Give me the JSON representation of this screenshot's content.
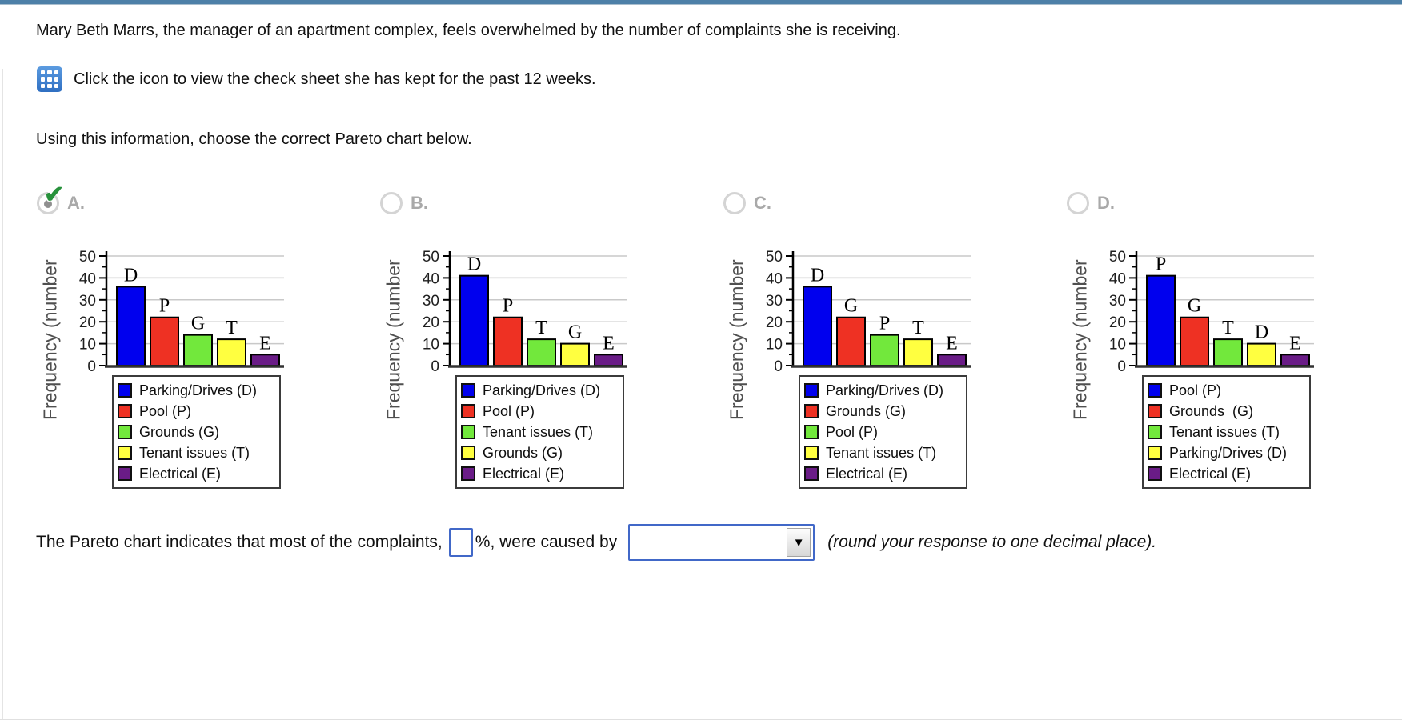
{
  "page": {
    "accent_color": "#4d80a8",
    "answer_border_color": "#4168c8",
    "correct_check_color": "#27913b"
  },
  "intro": {
    "line1": "Mary Beth Marrs, the manager of an apartment complex, feels overwhelmed by the number of complaints she is receiving.",
    "line2": "Click the icon to view the check sheet she has kept for the past 12 weeks.",
    "line3": "Using this information, choose the correct Pareto chart below."
  },
  "icons": {
    "check_sheet_icon": "table-grid-icon",
    "dropdown_arrow": "▼"
  },
  "options": [
    {
      "label": "A.",
      "selected": true
    },
    {
      "label": "B.",
      "selected": false
    },
    {
      "label": "C.",
      "selected": false
    },
    {
      "label": "D.",
      "selected": false
    }
  ],
  "chart_data": [
    {
      "type": "bar",
      "option": "A",
      "title": "",
      "ylabel": "Frequency (number",
      "xlabel": "",
      "ylim": [
        0,
        50
      ],
      "yticks": [
        0,
        10,
        20,
        30,
        40,
        50
      ],
      "grid": true,
      "categories": [
        "D",
        "P",
        "G",
        "T",
        "E"
      ],
      "values": [
        36,
        22,
        14,
        12,
        5
      ],
      "bar_colors": [
        "#0000ee",
        "#ee3123",
        "#72e83c",
        "#ffff40",
        "#6a1c87"
      ],
      "legend": [
        {
          "color": "#0000ee",
          "text": "Parking/Drives (D)"
        },
        {
          "color": "#ee3123",
          "text": "Pool (P)"
        },
        {
          "color": "#72e83c",
          "text": "Grounds (G)"
        },
        {
          "color": "#ffff40",
          "text": "Tenant issues (T)"
        },
        {
          "color": "#6a1c87",
          "text": "Electrical (E)"
        }
      ]
    },
    {
      "type": "bar",
      "option": "B",
      "title": "",
      "ylabel": "Frequency (number",
      "xlabel": "",
      "ylim": [
        0,
        50
      ],
      "yticks": [
        0,
        10,
        20,
        30,
        40,
        50
      ],
      "grid": true,
      "categories": [
        "D",
        "P",
        "T",
        "G",
        "E"
      ],
      "values": [
        41,
        22,
        12,
        10,
        5
      ],
      "bar_colors": [
        "#0000ee",
        "#ee3123",
        "#72e83c",
        "#ffff40",
        "#6a1c87"
      ],
      "legend": [
        {
          "color": "#0000ee",
          "text": "Parking/Drives (D)"
        },
        {
          "color": "#ee3123",
          "text": "Pool (P)"
        },
        {
          "color": "#72e83c",
          "text": "Tenant issues (T)"
        },
        {
          "color": "#ffff40",
          "text": "Grounds (G)"
        },
        {
          "color": "#6a1c87",
          "text": "Electrical (E)"
        }
      ]
    },
    {
      "type": "bar",
      "option": "C",
      "title": "",
      "ylabel": "Frequency (number",
      "xlabel": "",
      "ylim": [
        0,
        50
      ],
      "yticks": [
        0,
        10,
        20,
        30,
        40,
        50
      ],
      "grid": true,
      "categories": [
        "D",
        "G",
        "P",
        "T",
        "E"
      ],
      "values": [
        36,
        22,
        14,
        12,
        5
      ],
      "bar_colors": [
        "#0000ee",
        "#ee3123",
        "#72e83c",
        "#ffff40",
        "#6a1c87"
      ],
      "legend": [
        {
          "color": "#0000ee",
          "text": "Parking/Drives (D)"
        },
        {
          "color": "#ee3123",
          "text": "Grounds (G)"
        },
        {
          "color": "#72e83c",
          "text": "Pool (P)"
        },
        {
          "color": "#ffff40",
          "text": "Tenant issues (T)"
        },
        {
          "color": "#6a1c87",
          "text": "Electrical (E)"
        }
      ]
    },
    {
      "type": "bar",
      "option": "D",
      "title": "",
      "ylabel": "Frequency (number",
      "xlabel": "",
      "ylim": [
        0,
        50
      ],
      "yticks": [
        0,
        10,
        20,
        30,
        40,
        50
      ],
      "grid": true,
      "categories": [
        "P",
        "G",
        "T",
        "D",
        "E"
      ],
      "values": [
        41,
        22,
        12,
        10,
        5
      ],
      "bar_colors": [
        "#0000ee",
        "#ee3123",
        "#72e83c",
        "#ffff40",
        "#6a1c87"
      ],
      "legend": [
        {
          "color": "#0000ee",
          "text": "Pool (P)"
        },
        {
          "color": "#ee3123",
          "text": "Grounds  (G)"
        },
        {
          "color": "#72e83c",
          "text": "Tenant issues (T)"
        },
        {
          "color": "#ffff40",
          "text": "Parking/Drives (D)"
        },
        {
          "color": "#6a1c87",
          "text": "Electrical (E)"
        }
      ]
    }
  ],
  "answer_line": {
    "prefix": "The Pareto chart indicates that most of the complaints,",
    "percent_value": "",
    "after_input": "%, were caused by",
    "dropdown_value": "",
    "note_italic": "(round your response to one decimal place)."
  }
}
